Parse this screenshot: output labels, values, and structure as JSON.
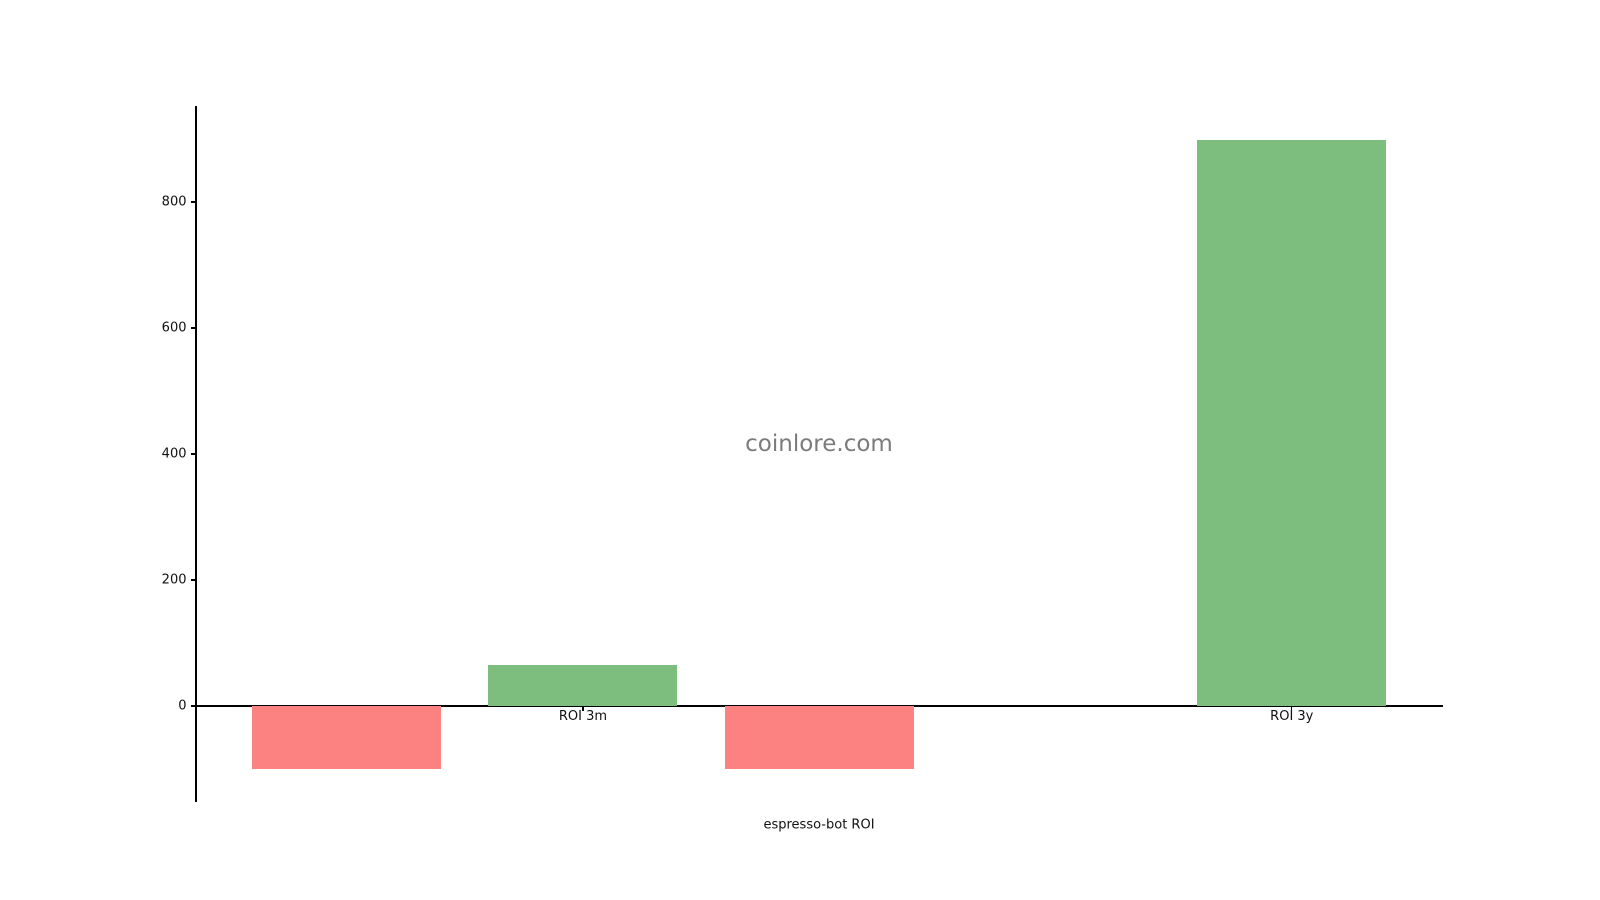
{
  "chart_data": {
    "type": "bar",
    "title": "",
    "xlabel": "espresso-bot ROI",
    "ylabel": "",
    "watermark": "coinlore.com",
    "y_ticks": [
      0,
      200,
      400,
      600,
      800
    ],
    "ylim": [
      -152,
      952
    ],
    "grid": false,
    "legend_position": "none",
    "bars": [
      {
        "label": "",
        "value": -100
      },
      {
        "label": "ROI 3m",
        "value": 66
      },
      {
        "label": "",
        "value": -100
      },
      {
        "label": "",
        "value": 0
      },
      {
        "label": "ROI 3y",
        "value": 898
      }
    ],
    "colors": {
      "positive": "#7dbd7e",
      "negative": "#fc8181",
      "axis": "#000000",
      "tick_text": "#111111",
      "watermark": "#7b7b7b"
    }
  }
}
